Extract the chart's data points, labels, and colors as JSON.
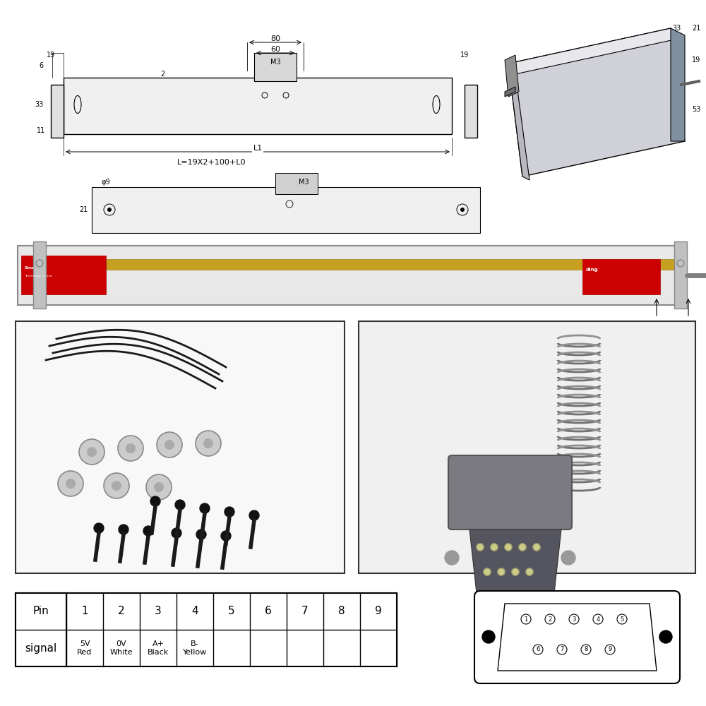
{
  "bg_color": "#ffffff",
  "title": "",
  "table_headers": [
    "Pin",
    "1",
    "2",
    "3",
    "4",
    "5",
    "6",
    "7",
    "8",
    "9"
  ],
  "table_row1_label": "signal",
  "table_signals": [
    "5V\nRed",
    "0V\nWhite",
    "A+\nBlack",
    "B-\nYellow",
    "",
    "",
    "",
    "",
    ""
  ],
  "db9_pins_top": [
    "1",
    "2",
    "3",
    "4",
    "5"
  ],
  "db9_pins_bot": [
    "6",
    "7",
    "8",
    "9"
  ],
  "dim_80": "80",
  "dim_60": "60",
  "dim_19_top": "19",
  "dim_6": "6",
  "dim_33": "33",
  "dim_11": "11",
  "dim_2": "2",
  "dim_19_right": "19",
  "dim_L1": "L1",
  "dim_formula": "L=19X2+100+L0",
  "dim_M3_top": "M3",
  "dim_21_side": "21",
  "dim_19_side": "19",
  "dim_53": "53",
  "dim_33_side": "33",
  "dim_phi9": "φ9",
  "dim_M3_bot": "M3",
  "dim_21_bot": "21"
}
